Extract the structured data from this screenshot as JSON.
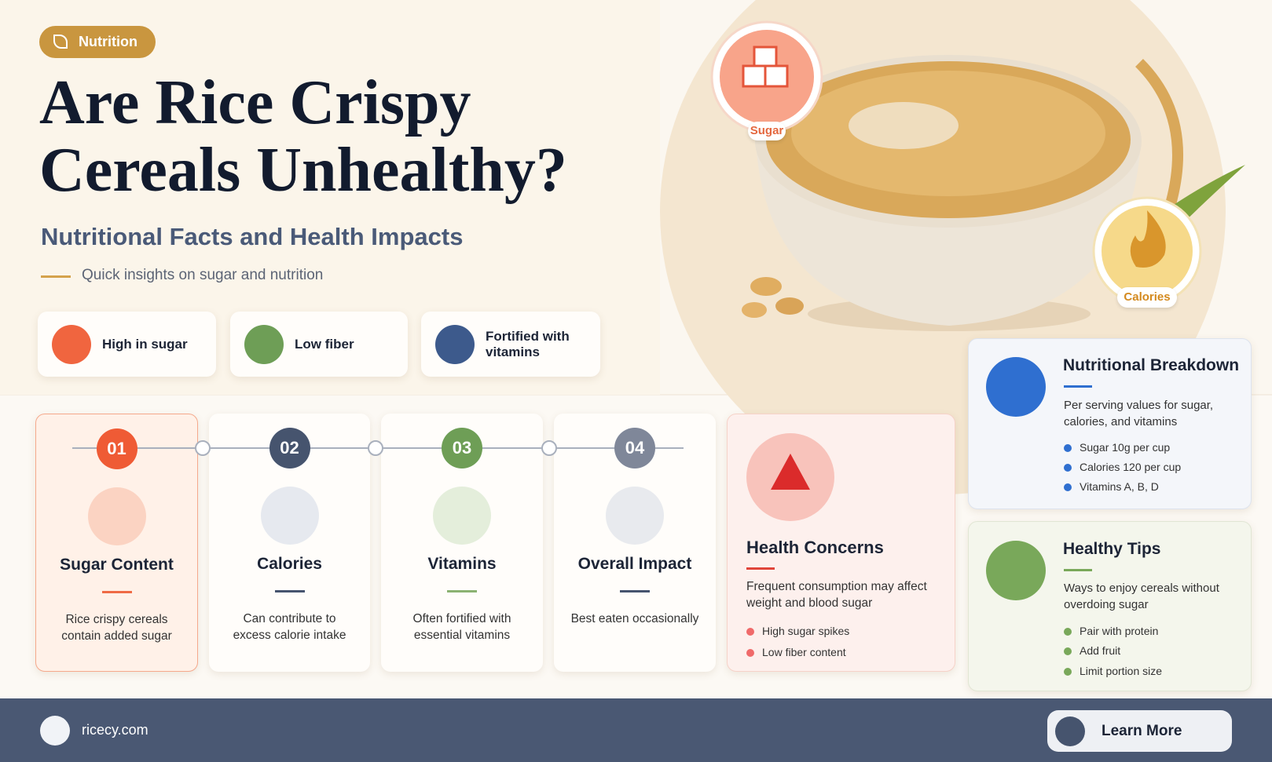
{
  "header": {
    "tag": "Nutrition",
    "title": "Are Rice Crispy Cereals Unhealthy?",
    "subtitle": "Nutritional Facts and Health Impacts",
    "tagline": "Quick insights on sugar and nutrition"
  },
  "highlights": [
    "High in sugar",
    "Low fiber",
    "Fortified with vitamins"
  ],
  "image_badges": [
    "Sugar",
    "Calories"
  ],
  "steps": [
    {
      "number": "01",
      "title": "Sugar Content",
      "text": "Rice crispy cereals contain added sugar"
    },
    {
      "number": "02",
      "title": "Calories",
      "text": "Can contribute to excess calorie intake"
    },
    {
      "number": "03",
      "title": "Vitamins",
      "text": "Often fortified with essential vitamins"
    },
    {
      "number": "04",
      "title": "Overall Impact",
      "text": "Best eaten occasionally"
    }
  ],
  "health_concerns": {
    "title": "Health Concerns",
    "text": "Frequent consumption may affect weight and blood sugar",
    "items": [
      "High sugar spikes",
      "Low fiber content"
    ]
  },
  "breakdown": {
    "title": "Nutritional Breakdown",
    "text": "Per serving values for sugar, calories, and vitamins",
    "items": [
      "Sugar 10g per cup",
      "Calories 120 per cup",
      "Vitamins A, B, D"
    ]
  },
  "tips": {
    "title": "Healthy Tips",
    "text": "Ways to enjoy cereals without overdoing sugar",
    "items": [
      "Pair with protein",
      "Add fruit",
      "Limit portion size"
    ]
  },
  "footer": {
    "site": "ricecy.com",
    "button": "Learn More"
  }
}
